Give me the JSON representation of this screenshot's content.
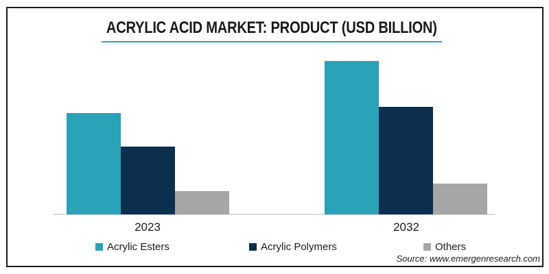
{
  "source": "Source: www.emergenresearch.com",
  "colors": {
    "accent_teal": "#2aa2b8",
    "navy": "#0c2f4d",
    "gray": "#a6a6a6",
    "axis_line": "#dadada",
    "frame_border": "#1c1c1c",
    "title_text": "#1a1a1a"
  },
  "chart_data": {
    "type": "bar",
    "title": "ACRYLIC ACID MARKET: PRODUCT (USD BILLION)",
    "categories": [
      "2023",
      "2032"
    ],
    "series": [
      {
        "name": "Acrylic Esters",
        "color": "#2aa2b8",
        "values": [
          6.6,
          10.0
        ]
      },
      {
        "name": "Acrylic Polymers",
        "color": "#0c2f4d",
        "values": [
          4.4,
          7.0
        ]
      },
      {
        "name": "Others",
        "color": "#a6a6a6",
        "values": [
          1.5,
          2.0
        ]
      }
    ],
    "units": "USD Billion",
    "ylim": [
      0,
      10.5
    ],
    "grid": false,
    "y_axis_ticks_shown": false,
    "value_labels_shown": false,
    "legend_position": "bottom"
  }
}
